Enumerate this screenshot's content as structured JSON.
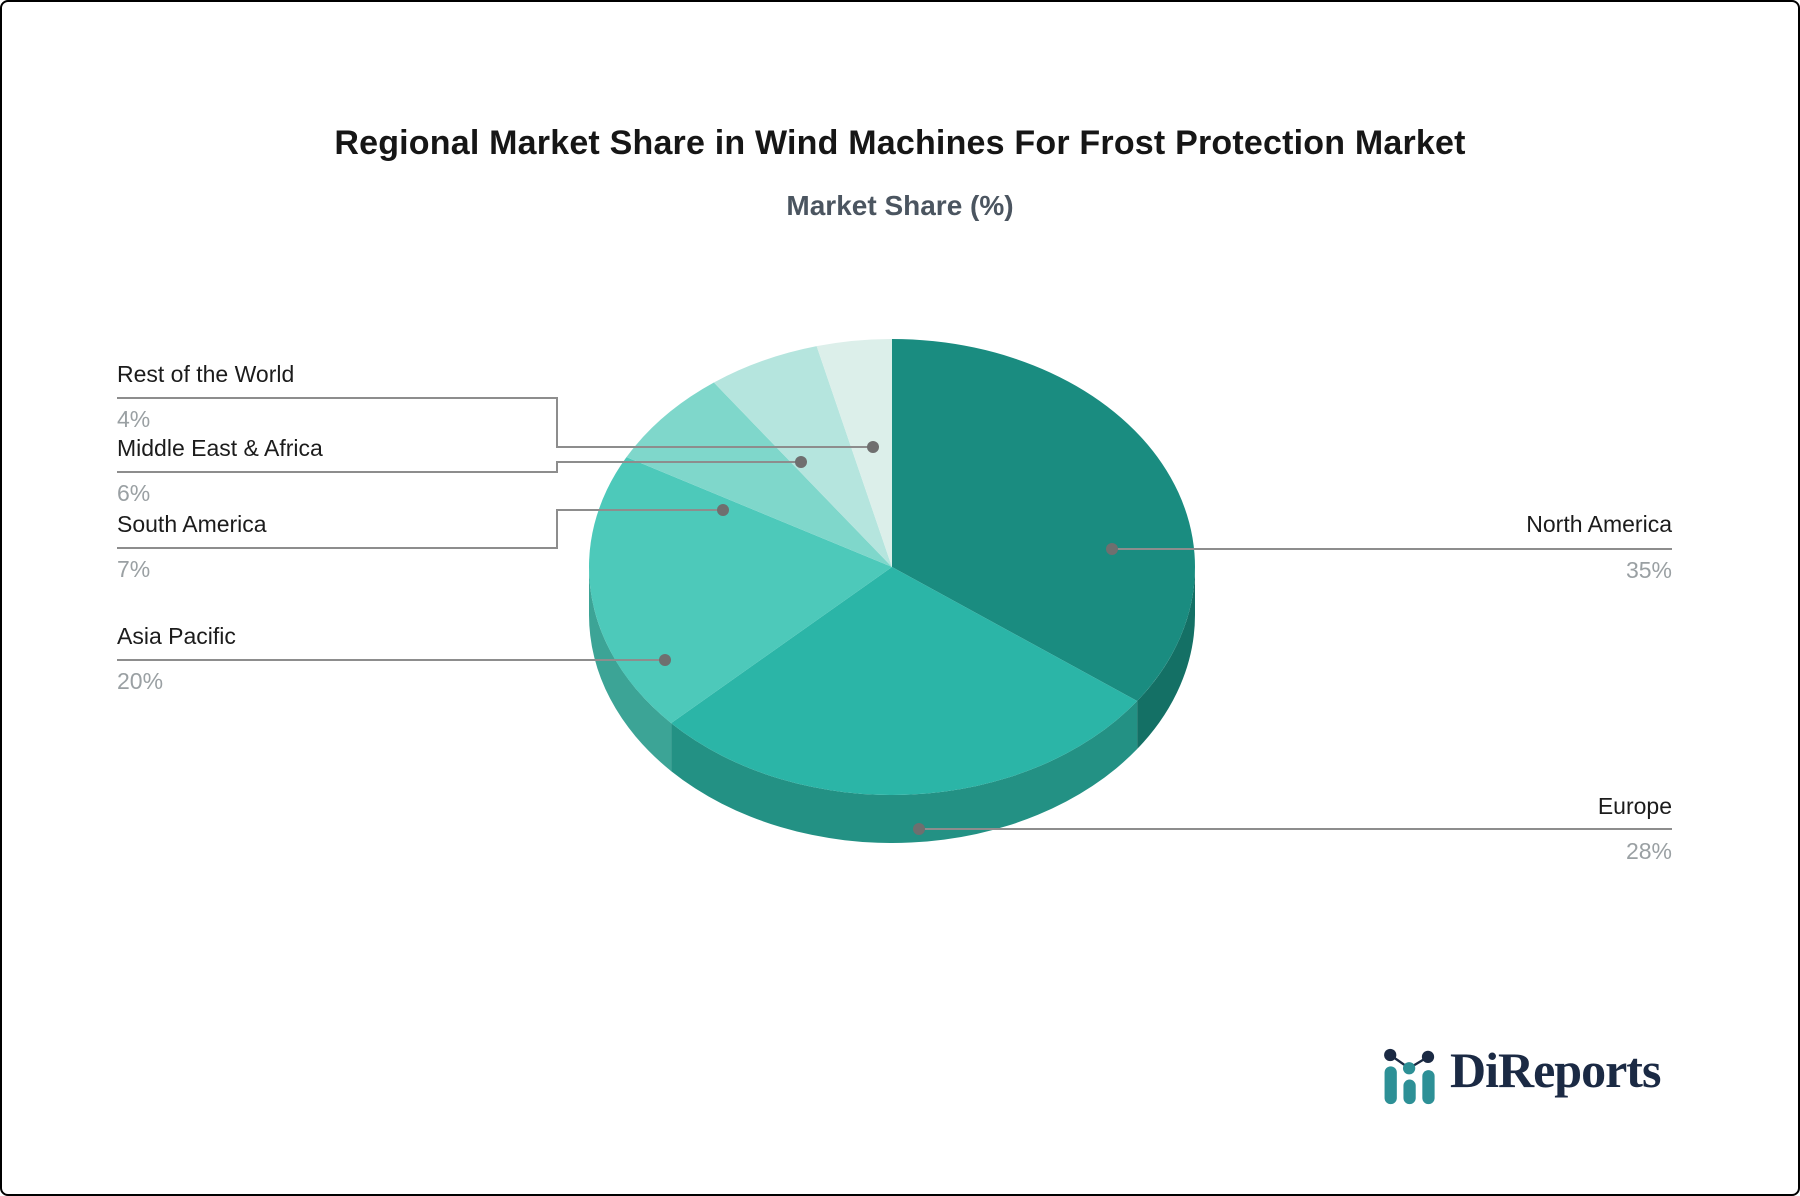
{
  "header": {
    "title": "Regional Market Share in Wind Machines For Frost Protection Market",
    "subtitle": "Market Share (%)"
  },
  "chart_data": {
    "type": "pie",
    "title": "Regional Market Share in Wind Machines For Frost Protection Market",
    "subtitle": "Market Share (%)",
    "unit": "%",
    "effect": "3d-depth",
    "start_angle_deg": 0,
    "direction": "clockwise",
    "legend_position": "callouts",
    "categories": [
      "North America",
      "Europe",
      "Asia Pacific",
      "South America",
      "Middle East & Africa",
      "Rest of the World"
    ],
    "values": [
      35,
      28,
      20,
      7,
      6,
      4
    ],
    "colors": [
      "#1A8C80",
      "#2BB5A7",
      "#4DC9BA",
      "#7FD7CB",
      "#B5E5DE",
      "#DCEFEA"
    ],
    "depth_colors": [
      "#147065",
      "#239184",
      "#3CA496",
      "#63AFA5",
      "#8FBEB7",
      "#AEC8C3"
    ]
  },
  "callouts": [
    {
      "id": "north-america",
      "label": "North America",
      "value": "35%",
      "side": "right"
    },
    {
      "id": "europe",
      "label": "Europe",
      "value": "28%",
      "side": "right"
    },
    {
      "id": "asia-pacific",
      "label": "Asia Pacific",
      "value": "20%",
      "side": "left"
    },
    {
      "id": "south-america",
      "label": "South America",
      "value": "7%",
      "side": "left"
    },
    {
      "id": "middle-east-africa",
      "label": "Middle East & Africa",
      "value": "6%",
      "side": "left"
    },
    {
      "id": "rest-of-world",
      "label": "Rest of the World",
      "value": "4%",
      "side": "left"
    }
  ],
  "connector_style": {
    "line_color": "#8d8d8d",
    "dot_color": "#6f6f6f"
  },
  "branding": {
    "logo_text": "DiReports",
    "icon_bar_color": "#2D9096",
    "icon_dot_color": "#1b2a44"
  }
}
